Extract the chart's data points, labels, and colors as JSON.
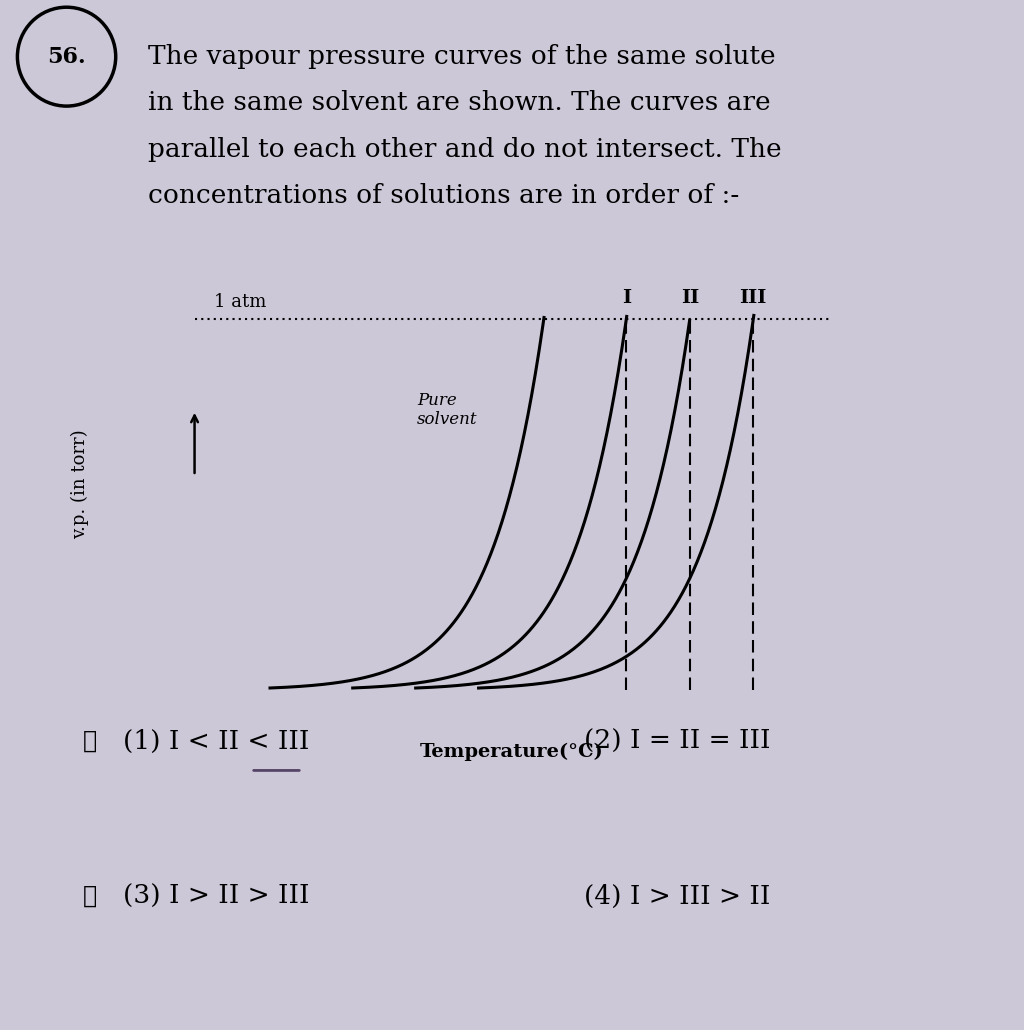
{
  "bg_color": "#ccc8d8",
  "text_color": "#1a1a1a",
  "title_lines": [
    "The vapour pressure curves of the same solute",
    "in the same solvent are shown. The curves are",
    "parallel to each other and do not intersect. The",
    "concentrations of solutions are in order of :-"
  ],
  "question_number": "56.",
  "ylabel": "v.p. (in torr)",
  "xlabel": "Temperature(°C)",
  "atm_label": "1 atm",
  "pure_solvent_label": "Pure\nsolvent",
  "curve_labels": [
    "I",
    "II",
    "III"
  ],
  "options": [
    {
      "num": "(1)",
      "text": "I < II < III",
      "underline": true,
      "tick": true
    },
    {
      "num": "(2)",
      "text": "I = II = III",
      "underline": false,
      "tick": false
    },
    {
      "num": "(3)",
      "text": "I > II > III",
      "underline": false,
      "tick": true
    },
    {
      "num": "(4)",
      "text": "I > III > II",
      "underline": false,
      "tick": false
    }
  ]
}
